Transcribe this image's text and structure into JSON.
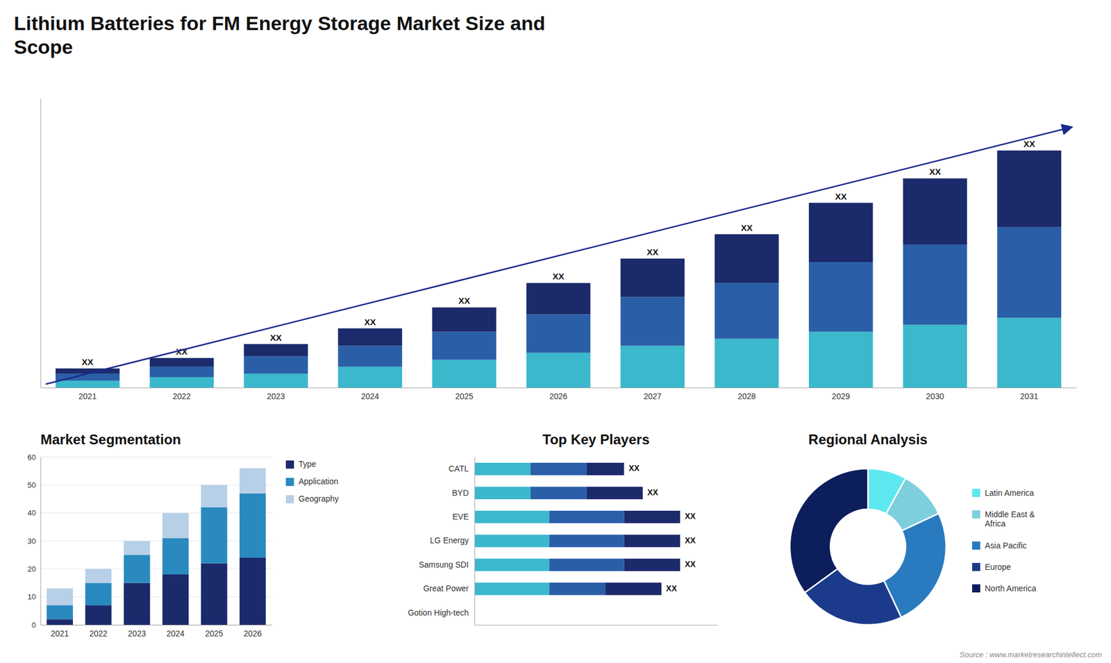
{
  "chart_data": [
    {
      "type": "bar",
      "stacked": true,
      "title": "Lithium Batteries for FM Energy Storage Market Size and\nScope",
      "categories": [
        "2021",
        "2022",
        "2023",
        "2024",
        "2025",
        "2026",
        "2027",
        "2028",
        "2029",
        "2030",
        "2031"
      ],
      "series": [
        {
          "color": "#3bb8cc",
          "values": [
            2,
            3,
            4,
            6,
            8,
            10,
            12,
            14,
            16,
            18,
            20
          ]
        },
        {
          "color": "#2a5fa8",
          "values": [
            2,
            3,
            5,
            6,
            8,
            11,
            14,
            16,
            20,
            23,
            26
          ]
        },
        {
          "color": "#1b2a6b",
          "values": [
            1.5,
            2.5,
            3.5,
            5,
            7,
            9,
            11,
            14,
            17,
            19,
            22
          ],
          "value_labels": [
            "XX",
            "XX",
            "XX",
            "XX",
            "XX",
            "XX",
            "XX",
            "XX",
            "XX",
            "XX",
            "XX"
          ]
        }
      ],
      "ylim": [
        0,
        82.96
      ],
      "tick_labels": "x",
      "grid": false
    },
    {
      "type": "bar",
      "stacked": true,
      "title": "Market Segmentation",
      "categories": [
        "2021",
        "2022",
        "2023",
        "2024",
        "2025",
        "2026"
      ],
      "series": [
        {
          "name": "Type",
          "color": "#1b2a6b",
          "values": [
            2,
            7,
            15,
            18,
            22,
            24
          ]
        },
        {
          "name": "Application",
          "color": "#2a8abf",
          "values": [
            5,
            8,
            10,
            13,
            20,
            23
          ]
        },
        {
          "name": "Geography",
          "color": "#b8cfe8",
          "values": [
            6,
            5,
            5,
            9,
            8,
            9
          ]
        }
      ],
      "ylim": [
        0,
        60
      ],
      "yticks": [
        0,
        10,
        20,
        30,
        40,
        50,
        60
      ],
      "grid": true,
      "legend": "right"
    },
    {
      "type": "bar",
      "stacked": true,
      "orientation": "horizontal",
      "title": "Top Key Players",
      "categories": [
        "Gotion High-tech",
        "Great Power",
        "Samsung SDI",
        "LG Energy",
        "EVE",
        "BYD",
        "CATL"
      ],
      "series": [
        {
          "color": "#3bb8cc",
          "values": [
            0,
            4,
            4,
            4,
            4,
            3,
            3
          ]
        },
        {
          "color": "#2a5fa8",
          "values": [
            0,
            3,
            4,
            4,
            4,
            3,
            3
          ]
        },
        {
          "color": "#1b2a6b",
          "values": [
            0,
            3,
            3,
            3,
            3,
            3,
            2
          ],
          "value_labels": [
            null,
            "XX",
            "XX",
            "XX",
            "XX",
            "XX",
            "XX"
          ]
        }
      ],
      "xlim": [
        0,
        13
      ],
      "tick_labels": "y",
      "grid": false
    },
    {
      "type": "pie",
      "title": "Regional Analysis",
      "categories": [
        "Latin America",
        "Middle East &\nAfrica",
        "Asia Pacific",
        "Europe",
        "North America"
      ],
      "values": [
        8,
        10,
        25,
        22,
        35
      ],
      "colors": [
        "#5de8f0",
        "#7ecfde",
        "#2a7abf",
        "#1b3a8b",
        "#0d1e5c"
      ],
      "legend": "right",
      "annotations": [
        "Source : www.marketresearchintellect.com"
      ]
    }
  ]
}
